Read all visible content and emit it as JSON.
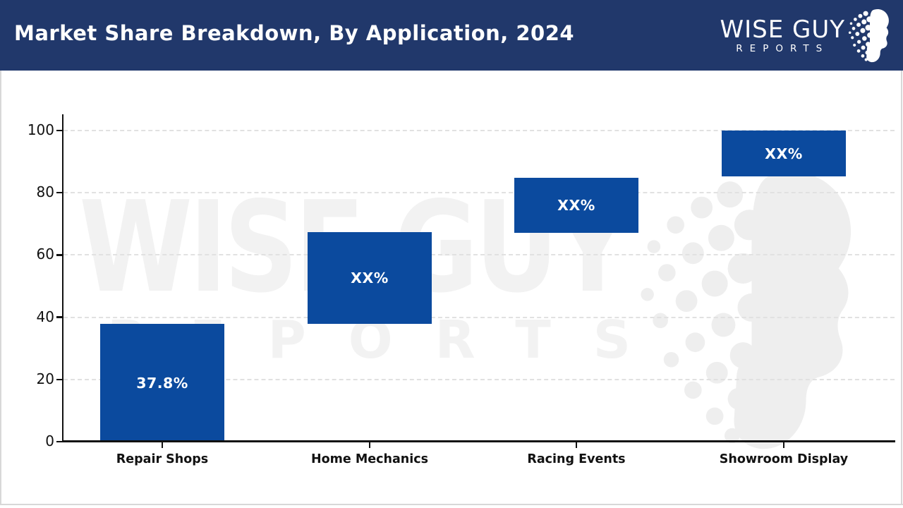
{
  "header": {
    "title": "Market Share Breakdown, By Application, 2024"
  },
  "brand": {
    "name": "WISE GUY",
    "sub": "REPORTS"
  },
  "watermark": {
    "name": "WISE GUY",
    "sub": "REPORTS"
  },
  "chart_data": {
    "type": "bar",
    "subtype": "waterfall",
    "title": "Market Share Breakdown, By Application, 2024",
    "categories": [
      "Repair Shops",
      "Home Mechanics",
      "Racing Events",
      "Showroom Display"
    ],
    "series": [
      {
        "name": "Market Share %",
        "segments": [
          {
            "category": "Repair Shops",
            "start": 0,
            "end": 37.8,
            "label": "37.8%"
          },
          {
            "category": "Home Mechanics",
            "start": 37.8,
            "end": 67.3,
            "label": "XX%"
          },
          {
            "category": "Racing Events",
            "start": 67.2,
            "end": 84.9,
            "label": "XX%"
          },
          {
            "category": "Showroom Display",
            "start": 85.2,
            "end": 100,
            "label": "XX%"
          }
        ]
      }
    ],
    "xlabel": "",
    "ylabel": "",
    "ylim": [
      0,
      100
    ],
    "yticks": [
      0,
      20,
      40,
      60,
      80,
      100
    ],
    "grid": "horizontal-dashed",
    "legend": false,
    "bar_color": "#0b4a9e",
    "bar_label_color": "#ffffff"
  },
  "colors": {
    "header_bg": "#21386b",
    "bar": "#0b4a9e",
    "grid": "#e1e1e1",
    "axis": "#111111",
    "watermark": "#f2f2f2",
    "frame": "#d8d8d8"
  }
}
